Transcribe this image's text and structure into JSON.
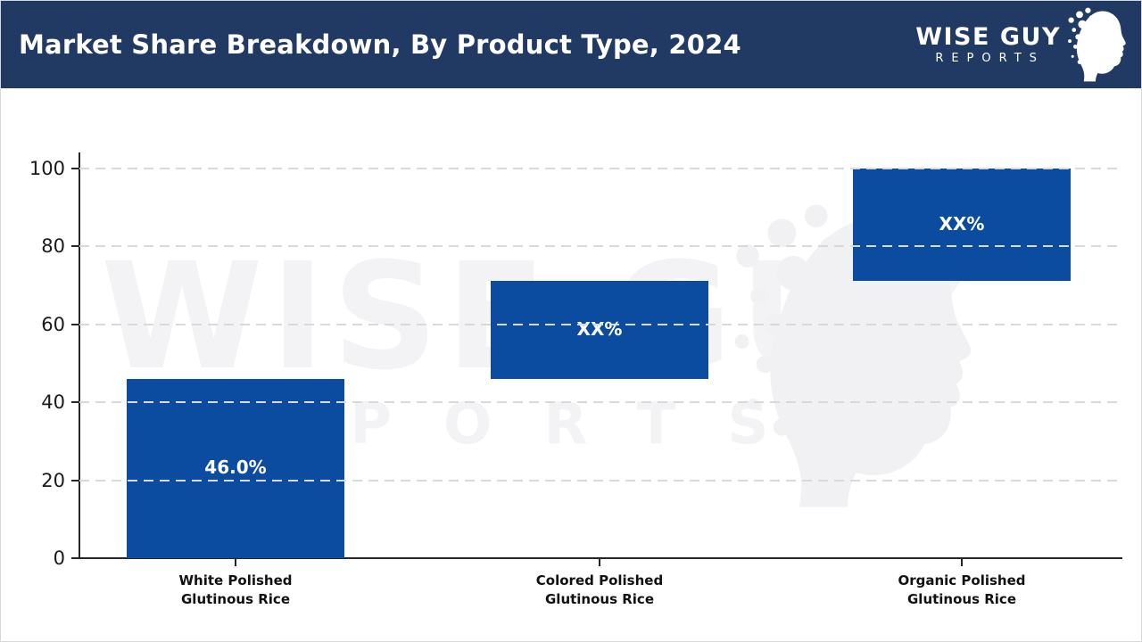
{
  "header": {
    "title": "Market Share Breakdown, By Product Type, 2024",
    "bg_color": "#213A64",
    "logo": {
      "line1": "WISE GUY",
      "line2": "REPORTS"
    }
  },
  "watermark": {
    "line1": "WISE GUY",
    "line2": "REPORTS"
  },
  "chart_data": {
    "type": "bar",
    "subtype": "stacked-waterfall",
    "title": "Market Share Breakdown, By Product Type, 2024",
    "categories": [
      [
        "White Polished",
        "Glutinous Rice"
      ],
      [
        "Colored Polished",
        "Glutinous Rice"
      ],
      [
        "Organic Polished",
        "Glutinous Rice"
      ]
    ],
    "segments": [
      {
        "start": 0,
        "end": 46,
        "label": "46.0%"
      },
      {
        "start": 46,
        "end": 71,
        "label": "XX%"
      },
      {
        "start": 71,
        "end": 100,
        "label": "XX%"
      }
    ],
    "yticks": [
      0,
      20,
      40,
      60,
      80,
      100
    ],
    "ylim": [
      0,
      104
    ],
    "xlabel": "",
    "ylabel": "",
    "grid": {
      "axis": "y",
      "style": "dashed",
      "color": "#D9D9D9",
      "on_top_of_bars": true
    },
    "bar_color": "#0B4CA1",
    "bar_label_color": "#FFFFFF",
    "axis_color": "#262626",
    "tick_label_color": "#1A1A1A",
    "legend": "none"
  }
}
